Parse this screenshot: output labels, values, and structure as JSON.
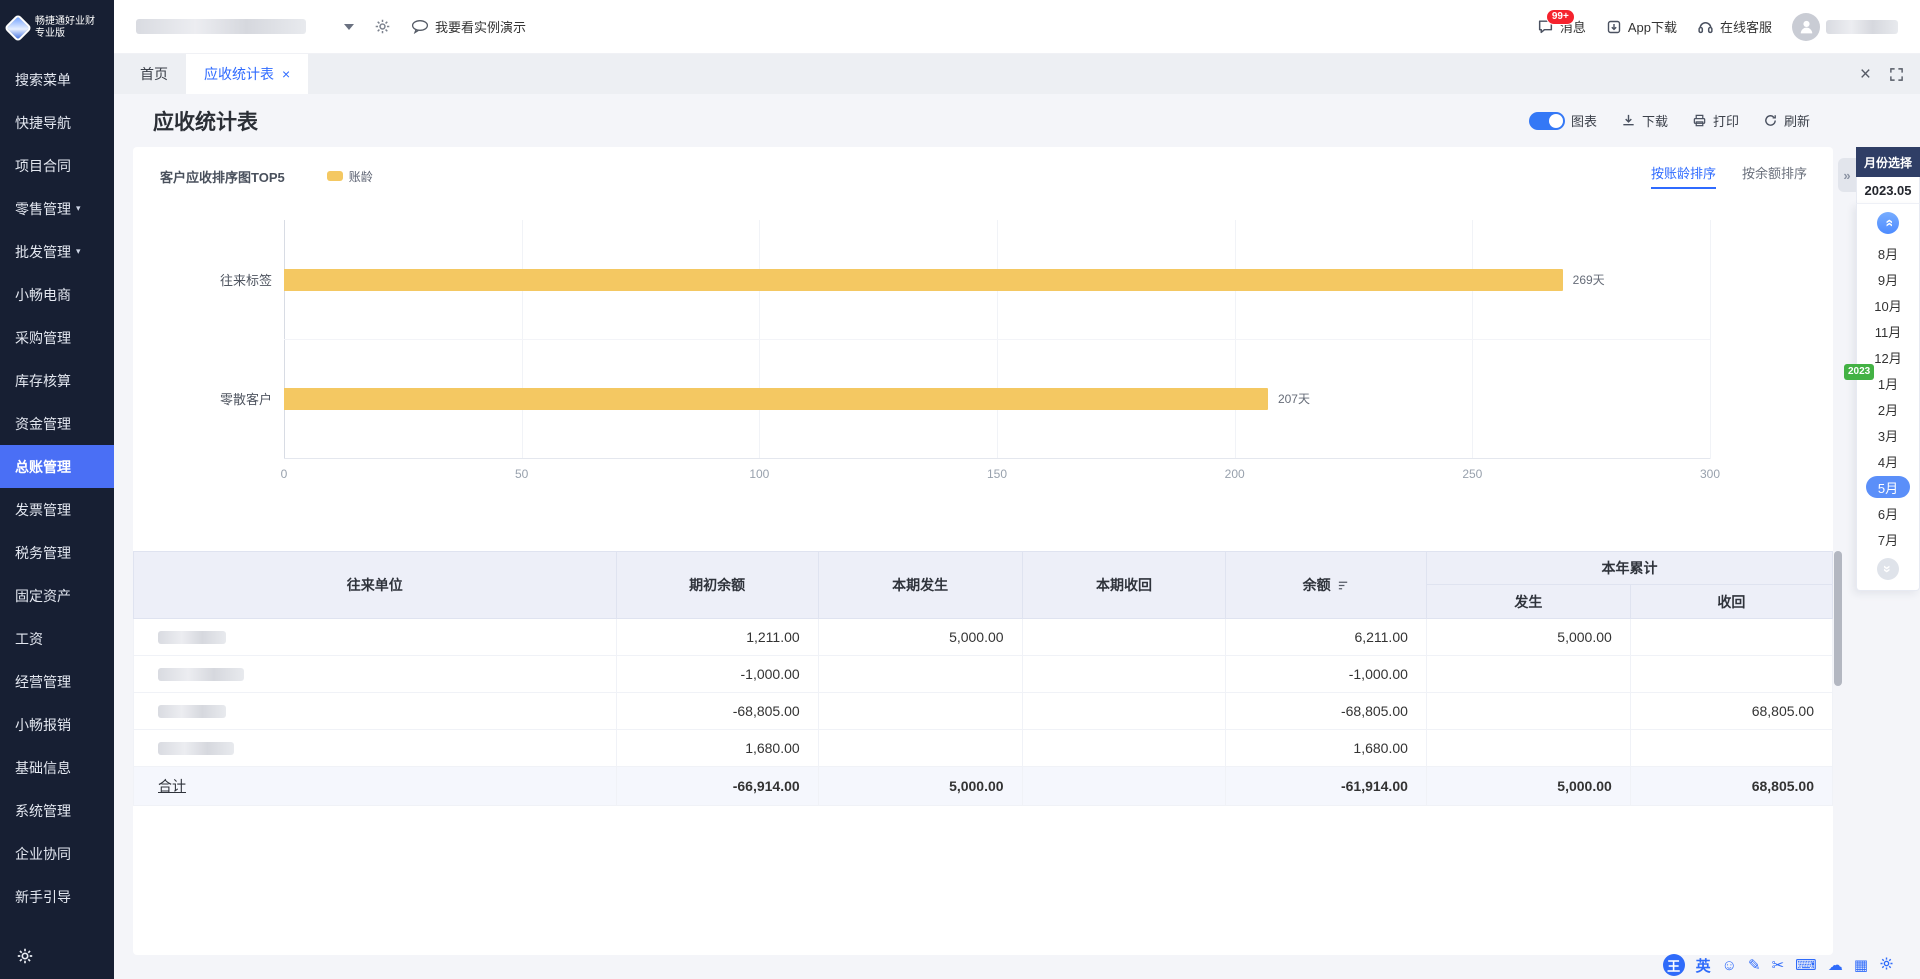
{
  "brand": {
    "line1": "畅捷通好业财",
    "line2": "专业版"
  },
  "icons": {
    "close": "×",
    "caret_down": "▾",
    "double_chevron": "»"
  },
  "sidebar": {
    "items": [
      {
        "label": "搜索菜单"
      },
      {
        "label": "快捷导航"
      },
      {
        "label": "项目合同"
      },
      {
        "label": "零售管理",
        "caret": "▾"
      },
      {
        "label": "批发管理",
        "caret": "▾"
      },
      {
        "label": "小畅电商"
      },
      {
        "label": "采购管理"
      },
      {
        "label": "库存核算"
      },
      {
        "label": "资金管理"
      },
      {
        "label": "总账管理"
      },
      {
        "label": "发票管理"
      },
      {
        "label": "税务管理"
      },
      {
        "label": "固定资产"
      },
      {
        "label": "工资"
      },
      {
        "label": "经营管理"
      },
      {
        "label": "小畅报销"
      },
      {
        "label": "基础信息"
      },
      {
        "label": "系统管理"
      },
      {
        "label": "企业协同"
      },
      {
        "label": "新手引导"
      }
    ]
  },
  "topbar": {
    "demo_text": "我要看实例演示",
    "messages_label": "消息",
    "messages_badge": "99+",
    "app_download_label": "App下载",
    "service_label": "在线客服"
  },
  "tabs": {
    "home": "首页",
    "active_tab": "应收统计表"
  },
  "page": {
    "title": "应收统计表",
    "chart_toggle_label": "图表",
    "download_label": "下载",
    "print_label": "打印",
    "refresh_label": "刷新"
  },
  "chart_data": {
    "type": "bar",
    "orientation": "horizontal",
    "title": "客户应收排序图TOP5",
    "legend": [
      "账龄"
    ],
    "categories": [
      "往来标签",
      "零散客户"
    ],
    "values": [
      269,
      207
    ],
    "value_labels": [
      "269天",
      "207天"
    ],
    "unit": "天",
    "xlim": [
      0,
      300
    ],
    "xticks": [
      "0",
      "50",
      "100",
      "150",
      "200",
      "250",
      "300"
    ],
    "bar_color": "#f4c862",
    "sort_options": [
      "按账龄排序",
      "按余额排序"
    ],
    "active_sort": "按账龄排序",
    "grid": true,
    "legend_position": "top-left"
  },
  "table": {
    "col_unit": "往来单位",
    "col_opening": "期初余额",
    "col_current": "本期发生",
    "col_received": "本期收回",
    "col_balance": "余额",
    "col_ytd": "本年累计",
    "col_ytd_occur": "发生",
    "col_ytd_recv": "收回",
    "rows": [
      {
        "opening": "1,211.00",
        "current": "5,000.00",
        "received": "",
        "balance": "6,211.00",
        "ytd_occur": "5,000.00",
        "ytd_recv": ""
      },
      {
        "opening": "-1,000.00",
        "current": "",
        "received": "",
        "balance": "-1,000.00",
        "ytd_occur": "",
        "ytd_recv": ""
      },
      {
        "opening": "-68,805.00",
        "current": "",
        "received": "",
        "balance": "-68,805.00",
        "ytd_occur": "",
        "ytd_recv": "68,805.00"
      },
      {
        "opening": "1,680.00",
        "current": "",
        "received": "",
        "balance": "1,680.00",
        "ytd_occur": "",
        "ytd_recv": ""
      }
    ],
    "total": {
      "label": "合计",
      "opening": "-66,914.00",
      "current": "5,000.00",
      "received": "",
      "balance": "-61,914.00",
      "ytd_occur": "5,000.00",
      "ytd_recv": "68,805.00"
    }
  },
  "month_panel": {
    "title": "月份选择",
    "current": "2023.05",
    "year_badge": "2023",
    "months": [
      "8月",
      "9月",
      "10月",
      "11月",
      "12月",
      "1月",
      "2月",
      "3月",
      "4月",
      "5月",
      "6月",
      "7月"
    ],
    "active_month": "5月"
  },
  "ime": {
    "circle": "王",
    "lang": "英",
    "icons": [
      "☺",
      "✎",
      "✂",
      "⌨",
      "☁",
      "▦"
    ]
  },
  "colors": {
    "sidebar_bg": "#171f33",
    "accent_blue": "#2f6bff",
    "active_nav_blue": "#4a6ff5",
    "bar_yellow": "#f4c862",
    "badge_red": "#f5222d",
    "active_month_blue": "#5b8ff9",
    "year_green": "#43b244"
  }
}
